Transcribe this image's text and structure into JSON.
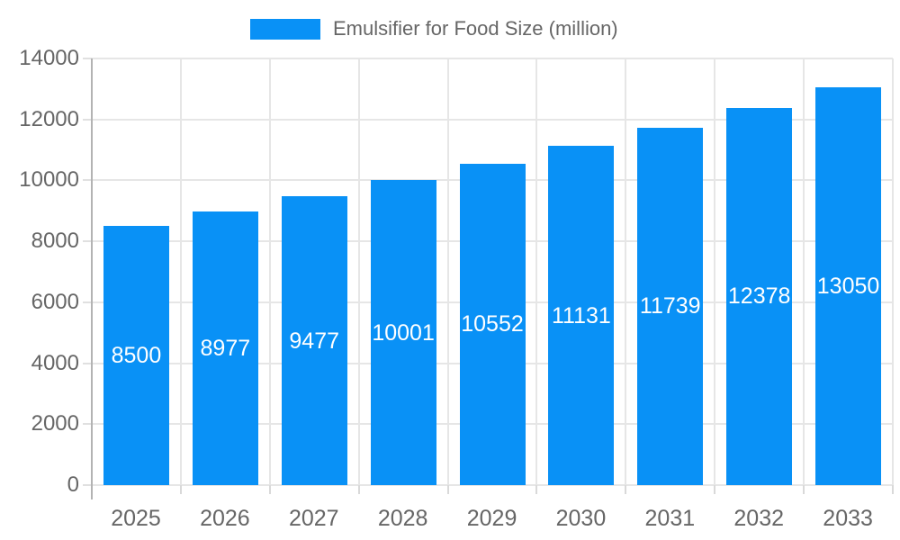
{
  "legend": {
    "label": "Emulsifier for Food Size (million)"
  },
  "chart_data": {
    "type": "bar",
    "title": "Emulsifier for Food Size (million)",
    "series_name": "Emulsifier for Food Size (million)",
    "categories": [
      "2025",
      "2026",
      "2027",
      "2028",
      "2029",
      "2030",
      "2031",
      "2032",
      "2033"
    ],
    "values": [
      8500,
      8977,
      9477,
      10001,
      10552,
      11131,
      11739,
      12378,
      13050
    ],
    "xlabel": "",
    "ylabel": "",
    "ylim": [
      0,
      14000
    ],
    "ytick_step": 2000,
    "yticks": [
      0,
      2000,
      4000,
      6000,
      8000,
      10000,
      12000,
      14000
    ],
    "grid": true,
    "legend_position": "top",
    "value_labels": "inside-middle"
  },
  "colors": {
    "bar": "#0991f6",
    "value_label": "#ffffff",
    "axis_text": "#666666",
    "grid": "#e6e6e6",
    "axis_line": "#b3b3b3",
    "background": "#ffffff"
  }
}
